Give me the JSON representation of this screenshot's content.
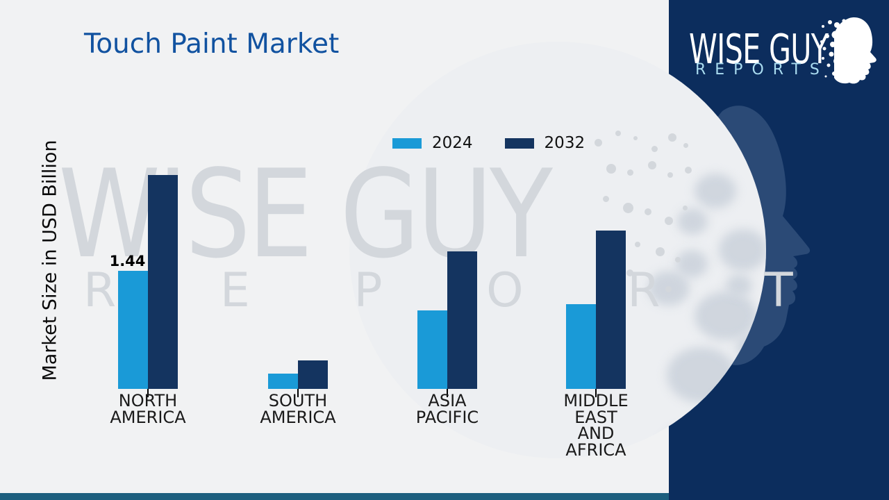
{
  "title": "Touch Paint Market",
  "y_axis_label": "Market Size in USD Billion",
  "watermark": {
    "line1": "WISE GUY",
    "line2": "REPORTS"
  },
  "logo": {
    "line1": "WISE GUY",
    "line2": "REPORTS"
  },
  "colors": {
    "series_2024": "#1a9ad7",
    "series_2032": "#143460",
    "title_blue": "#1152a0",
    "side_panel_navy": "#0c2d5d",
    "footer_teal": "#1d5f7e",
    "background": "#f1f2f3",
    "watermark_gray": "#d3d7dc"
  },
  "chart_data": {
    "type": "bar",
    "title": "Touch Paint Market",
    "ylabel": "Market Size in USD Billion",
    "xlabel": "",
    "categories": [
      "NORTH AMERICA",
      "SOUTH AMERICA",
      "ASIA PACIFIC",
      "MIDDLE EAST AND AFRICA"
    ],
    "series": [
      {
        "name": "2024",
        "color": "#1a9ad7",
        "values": [
          1.44,
          0.19,
          0.96,
          1.03
        ]
      },
      {
        "name": "2032",
        "color": "#143460",
        "values": [
          2.61,
          0.35,
          1.68,
          1.93
        ]
      }
    ],
    "annotations": [
      {
        "series": "2024",
        "category": "NORTH AMERICA",
        "text": "1.44"
      }
    ],
    "ylim": [
      0,
      2.8
    ],
    "grid": false,
    "axis_line": false,
    "legend_position": "top-center",
    "units": "USD Billion"
  }
}
